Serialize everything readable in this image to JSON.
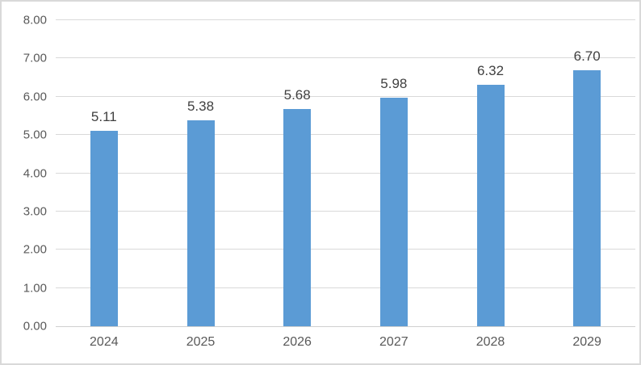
{
  "chart_data": {
    "type": "bar",
    "categories": [
      "2024",
      "2025",
      "2026",
      "2027",
      "2028",
      "2029"
    ],
    "values": [
      5.11,
      5.38,
      5.68,
      5.98,
      6.32,
      6.7
    ],
    "data_labels": [
      "5.11",
      "5.38",
      "5.68",
      "5.98",
      "6.32",
      "6.70"
    ],
    "title": "",
    "xlabel": "",
    "ylabel": "",
    "ylim": [
      0,
      8
    ],
    "ytick_step": 1,
    "ytick_labels": [
      "0.00",
      "1.00",
      "2.00",
      "3.00",
      "4.00",
      "5.00",
      "6.00",
      "7.00",
      "8.00"
    ],
    "grid": true,
    "legend_position": "none",
    "bar_color": "#5b9bd5",
    "gridline_color": "#d9d9d9",
    "axis_text_color": "#595959",
    "data_label_color": "#404040"
  }
}
